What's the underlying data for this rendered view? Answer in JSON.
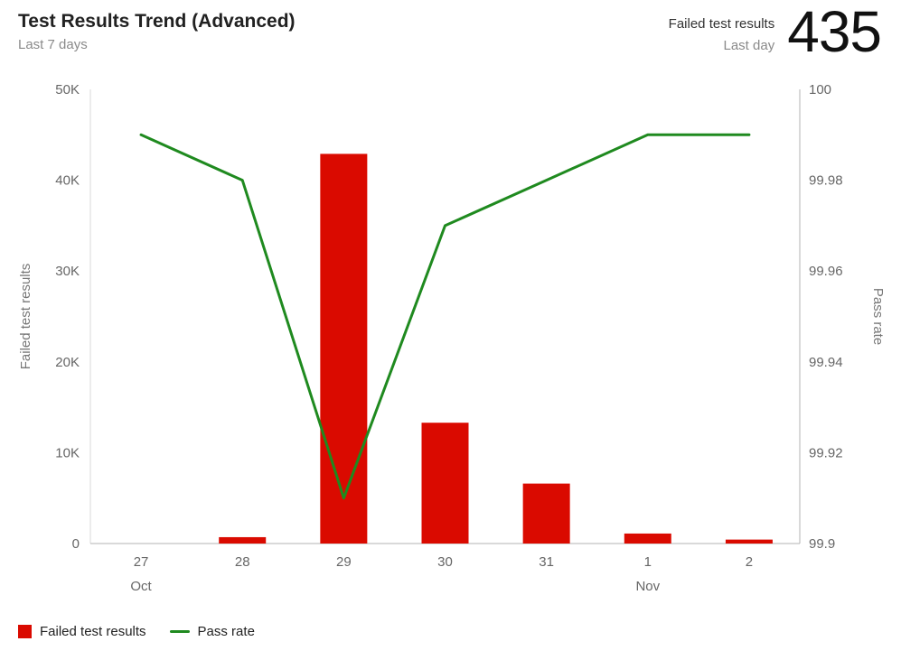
{
  "kpi": {
    "label": "Failed test results",
    "sublabel": "Last day",
    "value": "435"
  },
  "chart_data": {
    "type": "combo-bar-line",
    "title": "Test Results Trend (Advanced)",
    "subtitle": "Last 7 days",
    "categories": [
      "27",
      "28",
      "29",
      "30",
      "31",
      "1",
      "2"
    ],
    "category_sublabels": [
      "Oct",
      "",
      "",
      "",
      "",
      "Nov",
      ""
    ],
    "series": [
      {
        "name": "Failed test results",
        "type": "bar",
        "axis": "left",
        "color": "#da0a00",
        "values": [
          0,
          700,
          42900,
          13300,
          6600,
          1100,
          435
        ]
      },
      {
        "name": "Pass rate",
        "type": "line",
        "axis": "right",
        "color": "#1f8a1f",
        "values": [
          99.99,
          99.98,
          99.91,
          99.97,
          99.98,
          99.99,
          99.99
        ]
      }
    ],
    "left_axis": {
      "label": "Failed test results",
      "min": 0,
      "max": 50000,
      "ticks": [
        "0",
        "10K",
        "20K",
        "30K",
        "40K",
        "50K"
      ]
    },
    "right_axis": {
      "label": "Pass rate",
      "min": 99.9,
      "max": 100,
      "ticks": [
        "99.9",
        "99.92",
        "99.94",
        "99.96",
        "99.98",
        "100"
      ]
    },
    "grid": "off",
    "legend": {
      "position": "bottom-left",
      "items": [
        {
          "label": "Failed test results",
          "color": "#da0a00",
          "shape": "square"
        },
        {
          "label": "Pass rate",
          "color": "#1f8a1f",
          "shape": "line"
        }
      ]
    }
  }
}
